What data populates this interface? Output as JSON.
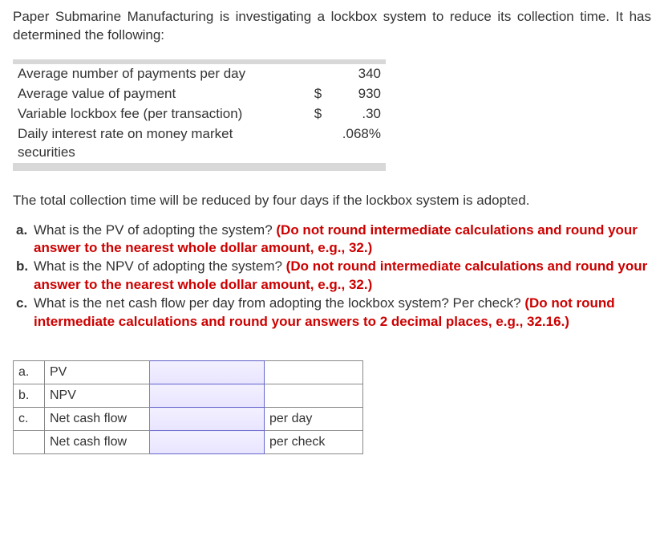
{
  "intro": "Paper Submarine Manufacturing is investigating a lockbox system to reduce its collection time. It has determined the following:",
  "given": {
    "rows": [
      {
        "label": "Average number of payments per day",
        "sym": "",
        "val": "340"
      },
      {
        "label": "Average value of payment",
        "sym": "$",
        "val": "930"
      },
      {
        "label": "Variable lockbox fee (per transaction)",
        "sym": "$",
        "val": ".30"
      },
      {
        "label": "Daily interest rate on money market securities",
        "sym": "",
        "val": ".068%"
      }
    ]
  },
  "narration": "The total collection time will be reduced by four days if the lockbox system is adopted.",
  "questions": {
    "a": {
      "letter": "a.",
      "text": "What is the PV of adopting the system? ",
      "red": "(Do not round intermediate calculations and round your answer to the nearest whole dollar amount, e.g., 32.)"
    },
    "b": {
      "letter": "b.",
      "text": "What is the NPV of adopting the system? ",
      "red": "(Do not round intermediate calculations and round your answer to the nearest whole dollar amount, e.g., 32.)"
    },
    "c": {
      "letter": "c.",
      "text": "What is the net cash flow per day from adopting the lockbox system? Per check? ",
      "red": "(Do not round intermediate calculations and round your answers to 2 decimal places, e.g., 32.16.)"
    }
  },
  "answers": {
    "rows": [
      {
        "letter": "a.",
        "desc": "PV",
        "unit": ""
      },
      {
        "letter": "b.",
        "desc": "NPV",
        "unit": ""
      },
      {
        "letter": "c.",
        "desc": "Net cash flow",
        "unit": "per day"
      },
      {
        "letter": "",
        "desc": "Net cash flow",
        "unit": "per check"
      }
    ]
  }
}
